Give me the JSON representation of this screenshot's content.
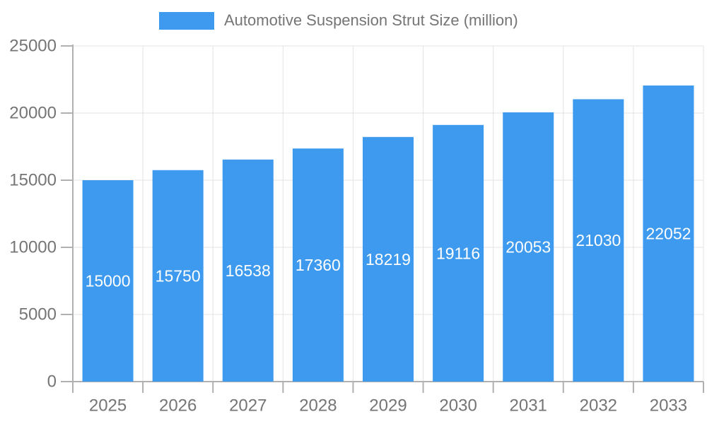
{
  "chart_data": {
    "type": "bar",
    "title": "Automotive Suspension Strut Size (million)",
    "categories": [
      "2025",
      "2026",
      "2027",
      "2028",
      "2029",
      "2030",
      "2031",
      "2032",
      "2033"
    ],
    "series": [
      {
        "name": "Automotive Suspension Strut Size (million)",
        "values": [
          15000,
          15750,
          16538,
          17360,
          18219,
          19116,
          20053,
          21030,
          22052
        ]
      }
    ],
    "bar_value_labels": [
      "15000",
      "15750",
      "16538",
      "17360",
      "18219",
      "19116",
      "20053",
      "21030",
      "22052"
    ],
    "xlabel": "",
    "ylabel": "",
    "ylim": [
      0,
      25000
    ],
    "yticks": [
      0,
      5000,
      10000,
      15000,
      20000,
      25000
    ],
    "ytick_labels": [
      "0",
      "5000",
      "10000",
      "15000",
      "20000",
      "25000"
    ],
    "grid": true,
    "legend_position": "top"
  },
  "legend": {
    "label": "Automotive Suspension Strut Size (million)"
  },
  "colors": {
    "bar": "#3D9AEF",
    "grid": "#E3E3E3",
    "axis": "#B0B0B0",
    "text": "#757575",
    "bar_label": "#FFFFFF",
    "background": "#FFFFFF"
  }
}
